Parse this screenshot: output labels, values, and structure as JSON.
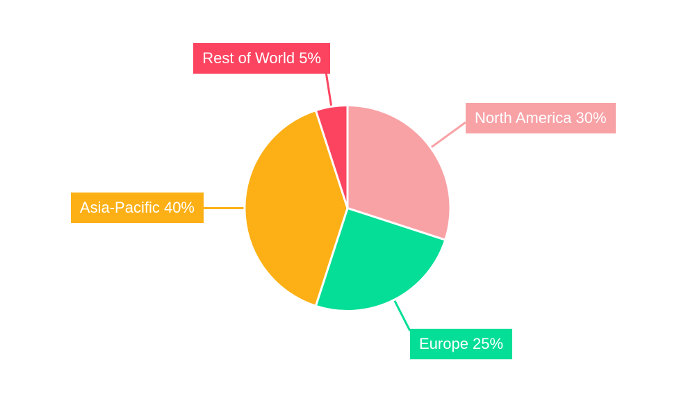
{
  "chart_data": {
    "type": "pie",
    "title": "",
    "background": "#FFFFFF",
    "separator_color": "#FFFFFF",
    "label_text_color": "#FFFFFF",
    "start_angle_deg": 0,
    "direction": "clockwise",
    "categories": [
      "North America",
      "Europe",
      "Asia-Pacific",
      "Rest of World"
    ],
    "values": [
      30,
      25,
      40,
      5
    ],
    "unit": "%",
    "slices": [
      {
        "name": "North America",
        "value": 30,
        "label": "North America 30%",
        "color": "#F8A2A6"
      },
      {
        "name": "Europe",
        "value": 25,
        "label": "Europe 25%",
        "color": "#04DE96"
      },
      {
        "name": "Asia-Pacific",
        "value": 40,
        "label": "Asia-Pacific 40%",
        "color": "#FCB016"
      },
      {
        "name": "Rest of World",
        "value": 5,
        "label": "Rest of World 5%",
        "color": "#FC4460"
      }
    ]
  }
}
